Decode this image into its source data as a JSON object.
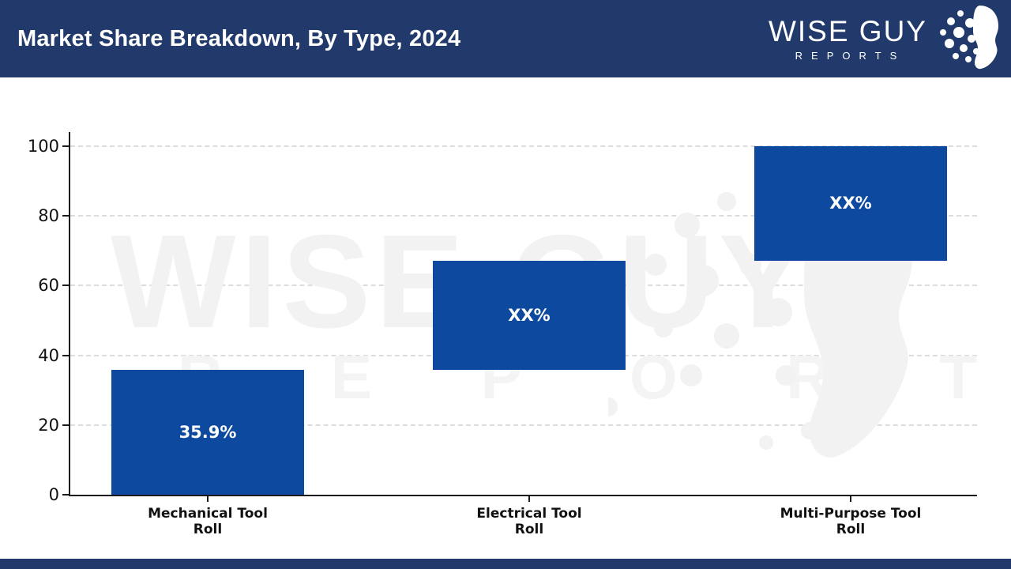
{
  "header": {
    "title": "Market Share Breakdown, By Type, 2024",
    "logo_line1": "WISE GUY",
    "logo_line2": "REPORTS"
  },
  "watermark": {
    "line1": "WISE GUY",
    "line2": "R E P O R T S"
  },
  "colors": {
    "header_bg": "#213a6b",
    "footer_bg": "#213a6b",
    "bar_fill": "#0d4a9f",
    "bar_label_text": "#ffffff",
    "gridline": "#dcdcdc",
    "axis": "#1a1a1a",
    "watermark": "#f2f2f2"
  },
  "chart_data": {
    "type": "bar",
    "variant": "waterfall",
    "title": "Market Share Breakdown, By Type, 2024",
    "categories": [
      "Mechanical Tool\nRoll",
      "Electrical Tool\nRoll",
      "Multi-Purpose Tool\nRoll"
    ],
    "series": [
      {
        "name": "Market share (%)",
        "segments": [
          {
            "category": "Mechanical Tool Roll",
            "start": 0,
            "end": 35.9,
            "label": "35.9%"
          },
          {
            "category": "Electrical Tool Roll",
            "start": 35.9,
            "end": 67.1,
            "label": "XX%"
          },
          {
            "category": "Multi-Purpose Tool Roll",
            "start": 67.1,
            "end": 100,
            "label": "XX%"
          }
        ]
      }
    ],
    "yticks": [
      0,
      20,
      40,
      60,
      80,
      100
    ],
    "ylim": [
      0,
      104
    ],
    "xlabel": "",
    "ylabel": "",
    "grid": "horizontal-dashed",
    "legend": "none"
  }
}
